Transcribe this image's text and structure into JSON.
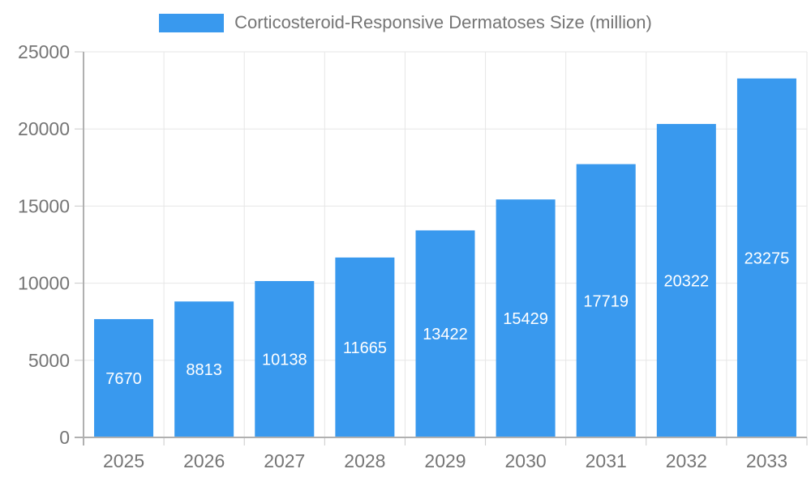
{
  "legend": {
    "label": "Corticosteroid-Responsive Dermatoses Size (million)"
  },
  "chart_data": {
    "type": "bar",
    "title": "Corticosteroid-Responsive Dermatoses Size (million)",
    "categories": [
      "2025",
      "2026",
      "2027",
      "2028",
      "2029",
      "2030",
      "2031",
      "2032",
      "2033"
    ],
    "values": [
      7670,
      8813,
      10138,
      11665,
      13422,
      15429,
      17719,
      20322,
      23275
    ],
    "xlabel": "",
    "ylabel": "",
    "ylim": [
      0,
      25000
    ],
    "yticks": [
      0,
      5000,
      10000,
      15000,
      20000,
      25000
    ],
    "grid": true,
    "legend_position": "top",
    "colors": {
      "bar": "#3999ee",
      "bar_value_label": "#ffffff",
      "axis_text": "#757575",
      "gridline": "#e6e6e6",
      "axis_line": "#b0b0b0",
      "tick_mark": "#c9c9c9"
    }
  }
}
